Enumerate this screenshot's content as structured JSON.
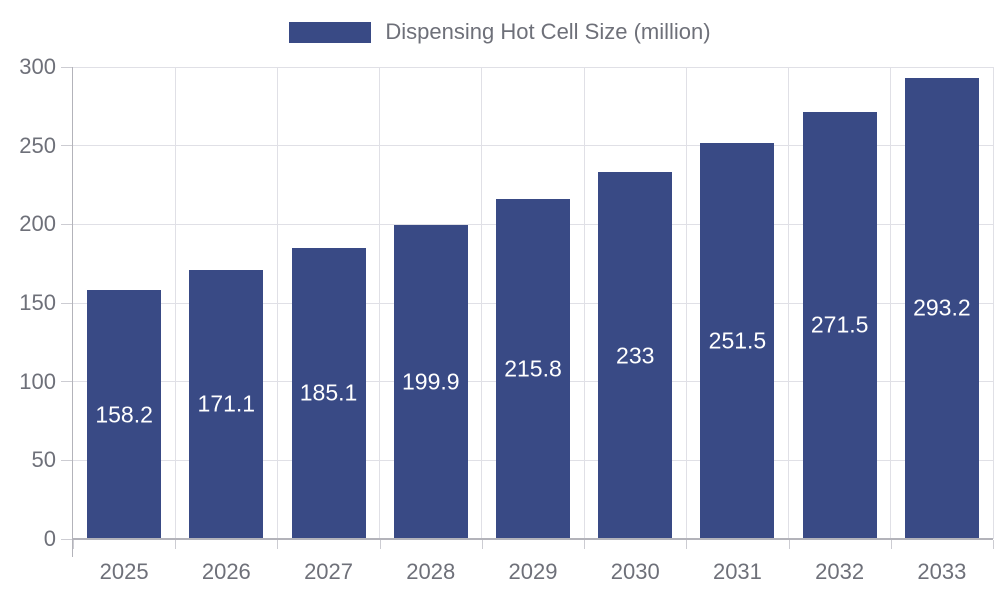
{
  "legend": {
    "label": "Dispensing Hot Cell Size (million)"
  },
  "chart_data": {
    "type": "bar",
    "title": "",
    "series_name": "Dispensing Hot Cell Size (million)",
    "categories": [
      "2025",
      "2026",
      "2027",
      "2028",
      "2029",
      "2030",
      "2031",
      "2032",
      "2033"
    ],
    "values": [
      158.2,
      171.1,
      185.1,
      199.9,
      215.8,
      233,
      251.5,
      271.5,
      293.2
    ],
    "xlabel": "",
    "ylabel": "",
    "ylim": [
      0,
      300
    ],
    "yticks": [
      0,
      50,
      100,
      150,
      200,
      250,
      300
    ],
    "grid": true,
    "legend_position": "top-center",
    "value_label_position": "inside-center",
    "colors": {
      "bar": "#394A85",
      "value_label": "#FFFFFF",
      "tick_text": "#6E7079",
      "grid_line": "#E0E0E6",
      "axis_line": "#B3B3BA",
      "tick_mark": "#CCCCD2",
      "background": "#FFFFFF"
    }
  }
}
